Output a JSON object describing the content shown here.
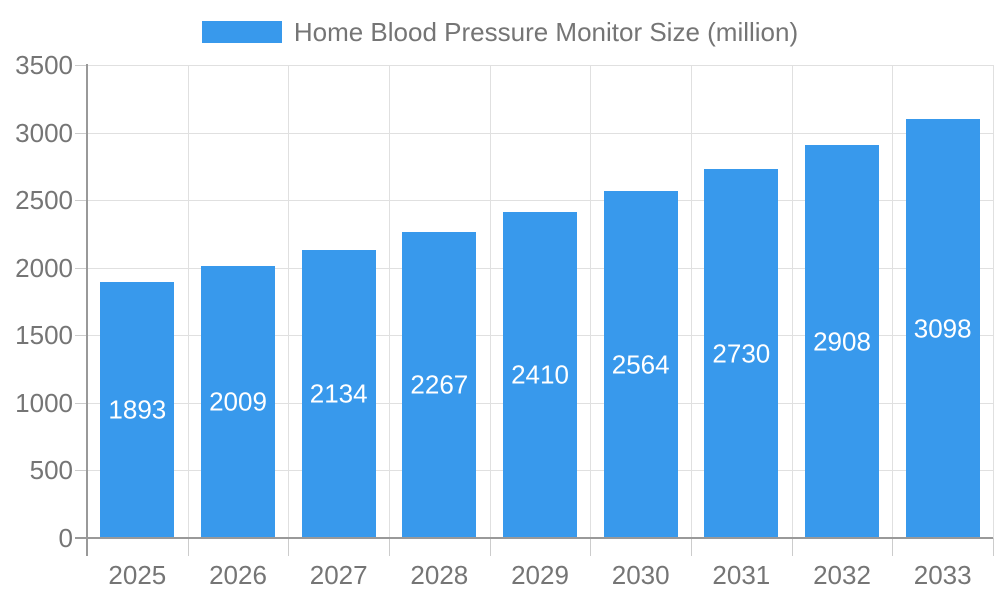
{
  "chart_data": {
    "type": "bar",
    "title": "Home Blood Pressure Monitor Size (million)",
    "categories": [
      "2025",
      "2026",
      "2027",
      "2028",
      "2029",
      "2030",
      "2031",
      "2032",
      "2033"
    ],
    "values": [
      1893,
      2009,
      2134,
      2267,
      2410,
      2564,
      2730,
      2908,
      3098
    ],
    "value_labels": [
      "1893",
      "2009",
      "2134",
      "2267",
      "2410",
      "2564",
      "2730",
      "2908",
      "3098"
    ],
    "xlabel": "",
    "ylabel": "",
    "ylim": [
      0,
      3500
    ],
    "ytick_step": 500,
    "ytick_labels": [
      "0",
      "500",
      "1000",
      "1500",
      "2000",
      "2500",
      "3000",
      "3500"
    ],
    "grid": true,
    "legend_position": "top",
    "colors": {
      "bar": "#3899ec",
      "bar_value_text": "#ffffff",
      "axis_text": "#757575",
      "grid_line": "#e0e0e0",
      "tick_line": "#cccccc",
      "axis_line": "#999999",
      "background": "#ffffff"
    }
  }
}
